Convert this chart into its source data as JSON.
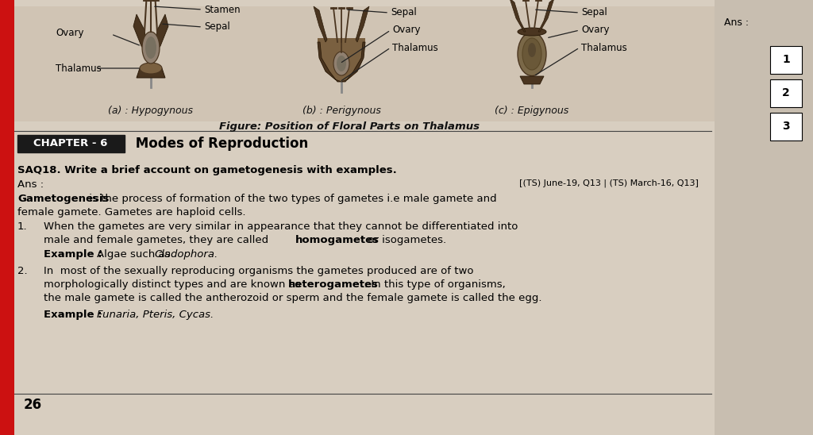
{
  "bg_color": "#b8a898",
  "page_color": "#d8cec0",
  "fig_area_color": "#ccc0b0",
  "chapter_box_color": "#1a1a1a",
  "figure_caption_labels": [
    "(a) : Hypogynous",
    "(b) : Perigynous",
    "(c) : Epigynous"
  ],
  "figure_caption": "Figure: Position of Floral Parts on Thalamus",
  "chapter_text": "CHAPTER - 6",
  "chapter_title": " Modes of Reproduction",
  "saq_text": "SAQ18. Write a brief account on gametogenesis with examples.",
  "ans_label": "Ans :",
  "ts_ref": "[(TS) June-19, Q13 | (TS) March-16, Q13]",
  "para1_bold": "Gametogenesis",
  "para1_rest": " is the process of formation of the two types of gametes i.e male gamete and",
  "para1_line2": "female gamete. Gametes are haploid cells.",
  "p1_num": "1.",
  "p1_line1": "When the gametes are very similar in appearance that they cannot be differentiated into",
  "p1_line2a": "male and female gametes, they are called ",
  "p1_bold": "homogametes",
  "p1_line2b": " or isogametes.",
  "ex1_bold": "Example : ",
  "ex1_normal": "Algae such as ",
  "ex1_italic": "Cladophora.",
  "p2_num": "2.",
  "p2_line1": "In  most of the sexually reproducing organisms the gametes produced are of two",
  "p2_line2a": "morphologically distinct types and are known as ",
  "p2_bold": "heterogametes",
  "p2_line2b": ". In this type of organisms,",
  "p2_line3": "the male gamete is called the antherozoid or sperm and the female gamete is called the egg.",
  "ex2_bold": "Example : ",
  "ex2_italic": "Funaria, Pteris, Cycas.",
  "page_number": "26",
  "red_strip_color": "#cc1111",
  "right_panel_color": "#c8beb0",
  "ans_right_text": "Ans :",
  "numbered_boxes": [
    "1",
    "2",
    "3"
  ],
  "diagram_dark": "#4a3520",
  "diagram_mid": "#7a6040",
  "label_line_color": "#222222",
  "labels_a_left": [
    "Ovary",
    "Thalamus"
  ],
  "labels_a_right": [
    "Stamen",
    "Sepal"
  ],
  "labels_b_left": [],
  "labels_b_right": [
    "Sepal",
    "Ovary",
    "Thalamus"
  ],
  "labels_c_right": [
    "Sepal",
    "Ovary",
    "Thalamus"
  ]
}
